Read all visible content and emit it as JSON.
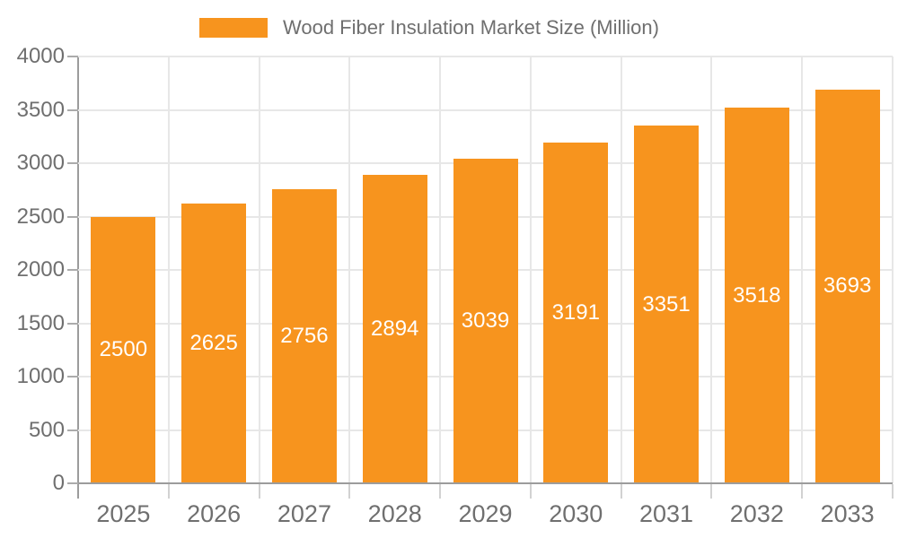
{
  "chart_data": {
    "type": "bar",
    "title": "Wood Fiber Insulation Market Size (Million)",
    "legend": [
      "Wood Fiber Insulation Market Size (Million)"
    ],
    "legend_position": "top",
    "categories": [
      "2025",
      "2026",
      "2027",
      "2028",
      "2029",
      "2030",
      "2031",
      "2032",
      "2033"
    ],
    "series": [
      {
        "name": "Wood Fiber Insulation Market Size (Million)",
        "values": [
          2500,
          2625,
          2756,
          2894,
          3039,
          3191,
          3351,
          3518,
          3693
        ]
      }
    ],
    "bar_value_labels": [
      "2500",
      "2625",
      "2756",
      "2894",
      "3039",
      "3191",
      "3351",
      "3518",
      "3693"
    ],
    "xlabel": "",
    "ylabel": "",
    "ylim": [
      0,
      4000
    ],
    "y_ticks": [
      0,
      500,
      1000,
      1500,
      2000,
      2500,
      3000,
      3500,
      4000
    ],
    "grid": true,
    "colors": {
      "bar": "#F7941E",
      "bar_label_text": "#FFFFFF",
      "axis_label_text": "#6F6F6F",
      "legend_text": "#6F6F6F",
      "grid_line": "#E7E7E7",
      "axis_line": "#9C9C9C",
      "x_tick": "#D2D2D2",
      "y_tick": "#ABABAB",
      "background": "#FFFFFF"
    }
  }
}
